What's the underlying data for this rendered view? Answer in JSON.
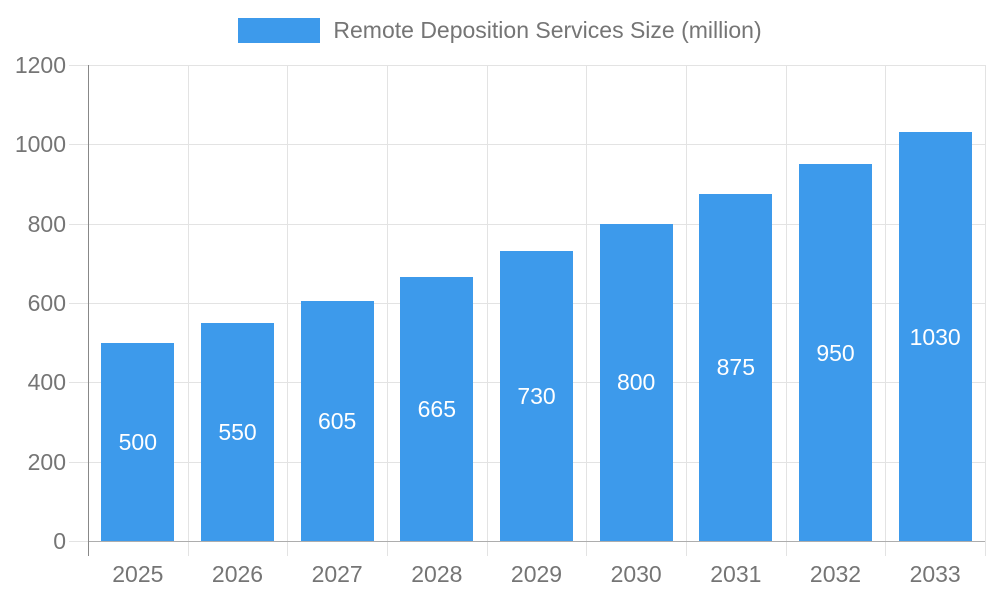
{
  "legend": {
    "label": "Remote Deposition Services Size (million)"
  },
  "chart_data": {
    "type": "bar",
    "title": "",
    "series_name": "Remote Deposition Services Size (million)",
    "categories": [
      "2025",
      "2026",
      "2027",
      "2028",
      "2029",
      "2030",
      "2031",
      "2032",
      "2033"
    ],
    "values": [
      500,
      550,
      605,
      665,
      730,
      800,
      875,
      950,
      1030
    ],
    "xlabel": "",
    "ylabel": "",
    "ylim": [
      0,
      1200
    ],
    "yticks": [
      0,
      200,
      400,
      600,
      800,
      1000,
      1200
    ],
    "grid": true,
    "legend_position": "top",
    "bar_labels_inside": true,
    "colors": {
      "bar": "#3D9AEB",
      "bar_label": "#FFFFFF",
      "axis_text": "#757575",
      "gridline": "#E3E3E3",
      "y_axis_line": "#888888",
      "x_axis_line": "#ADADAD"
    }
  }
}
